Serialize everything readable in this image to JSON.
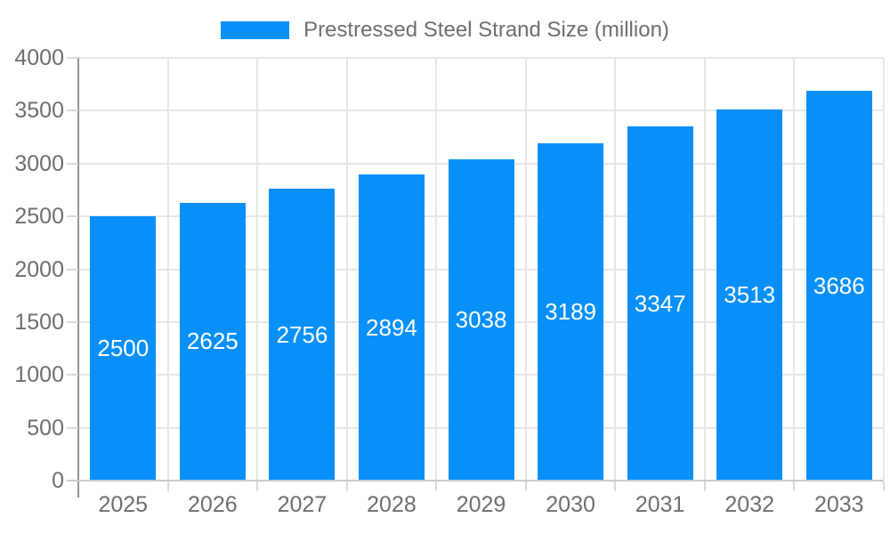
{
  "chart_data": {
    "type": "bar",
    "title": "",
    "legend": {
      "position": "top",
      "label": "Prestressed Steel Strand Size (million)"
    },
    "categories": [
      "2025",
      "2026",
      "2027",
      "2028",
      "2029",
      "2030",
      "2031",
      "2032",
      "2033"
    ],
    "series": [
      {
        "name": "Prestressed Steel Strand Size (million)",
        "values": [
          2500,
          2625,
          2756,
          2894,
          3038,
          3189,
          3347,
          3513,
          3686
        ]
      }
    ],
    "xlabel": "",
    "ylabel": "",
    "ylim": [
      0,
      4000
    ],
    "yticks": [
      0,
      500,
      1000,
      1500,
      2000,
      2500,
      3000,
      3500,
      4000
    ],
    "grid": true,
    "colors": {
      "bar": "#0890F8",
      "bar_value_label": "#ffffff",
      "axis_text": "#6e6e6e",
      "gridline": "#e6e6e6",
      "tick": "#d9d9d9",
      "y_axis_line": "#949494",
      "x_axis_line": "#c9c9c9",
      "background": "#ffffff"
    }
  }
}
